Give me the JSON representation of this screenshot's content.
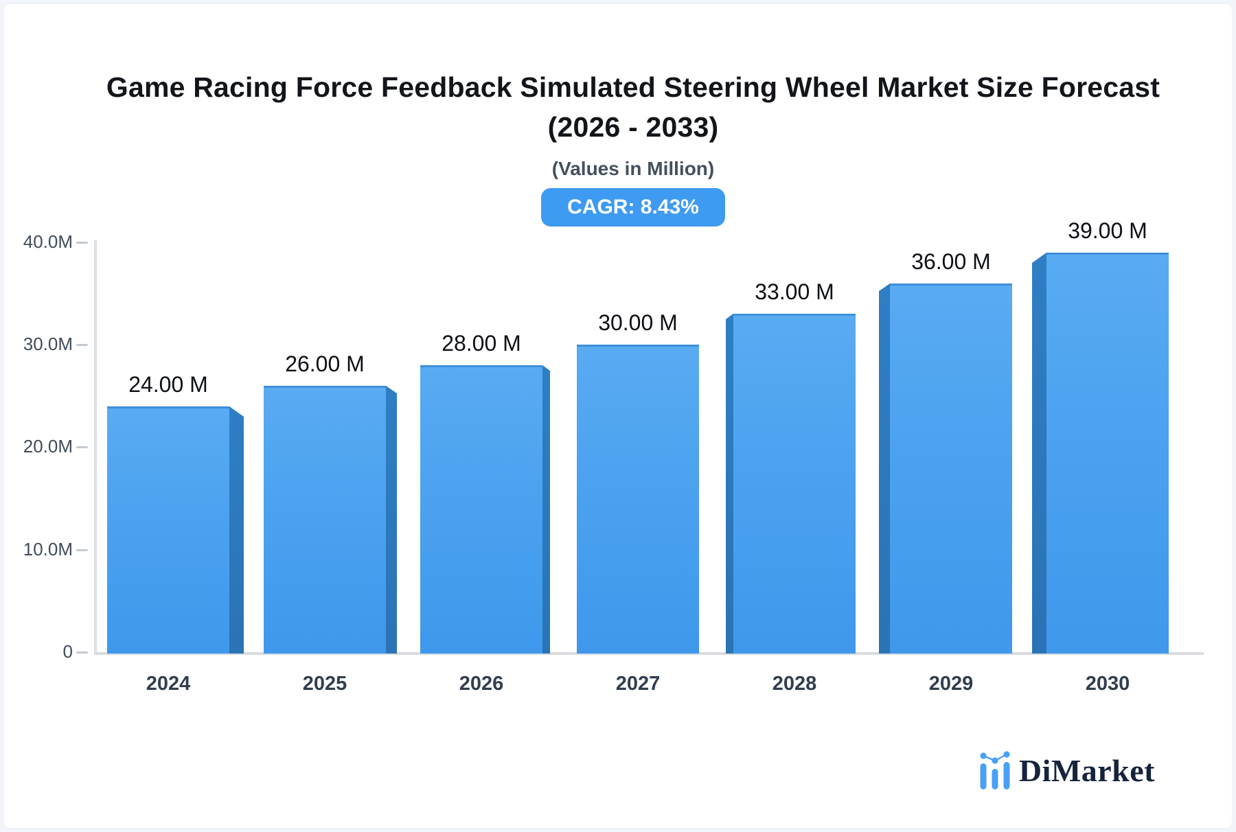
{
  "header": {
    "title_line1": "Game Racing Force Feedback Simulated Steering Wheel Market Size Forecast",
    "title_line2": "(2026 - 2033)",
    "subtitle": "(Values in Million)",
    "cagr_badge": "CAGR: 8.43%"
  },
  "chart_data": {
    "type": "bar",
    "title": "Game Racing Force Feedback Simulated Steering Wheel Market Size Forecast (2026 - 2033)",
    "subtitle": "(Values in Million)",
    "cagr_percent": 8.43,
    "categories": [
      "2024",
      "2025",
      "2026",
      "2027",
      "2028",
      "2029",
      "2030"
    ],
    "values": [
      24,
      26,
      28,
      30,
      33,
      36,
      39
    ],
    "value_labels": [
      "24.00 M",
      "26.00 M",
      "28.00 M",
      "30.00 M",
      "33.00 M",
      "36.00 M",
      "39.00 M"
    ],
    "unit": "Million",
    "ylim": [
      0,
      40
    ],
    "yticks": [
      {
        "value": 0,
        "label": "0"
      },
      {
        "value": 10,
        "label": "10.0M"
      },
      {
        "value": 20,
        "label": "20.0M"
      },
      {
        "value": 30,
        "label": "30.0M"
      },
      {
        "value": 40,
        "label": "40.0M"
      }
    ],
    "grid": false,
    "legend": false,
    "bar_color_top": "#59abf2",
    "bar_color_bottom": "#3f98ec",
    "bar_side_color": "#2e7cc0"
  },
  "branding": {
    "logo_text": "DiMarket",
    "logo_icon": "bar-chart-trend-icon",
    "logo_icon_color": "#4aa0f5",
    "logo_text_color": "#15233d"
  },
  "colors": {
    "badge_blue": "#3e9bf1",
    "axis_line": "#d8dbe0",
    "axis_label": "#414b5a"
  }
}
